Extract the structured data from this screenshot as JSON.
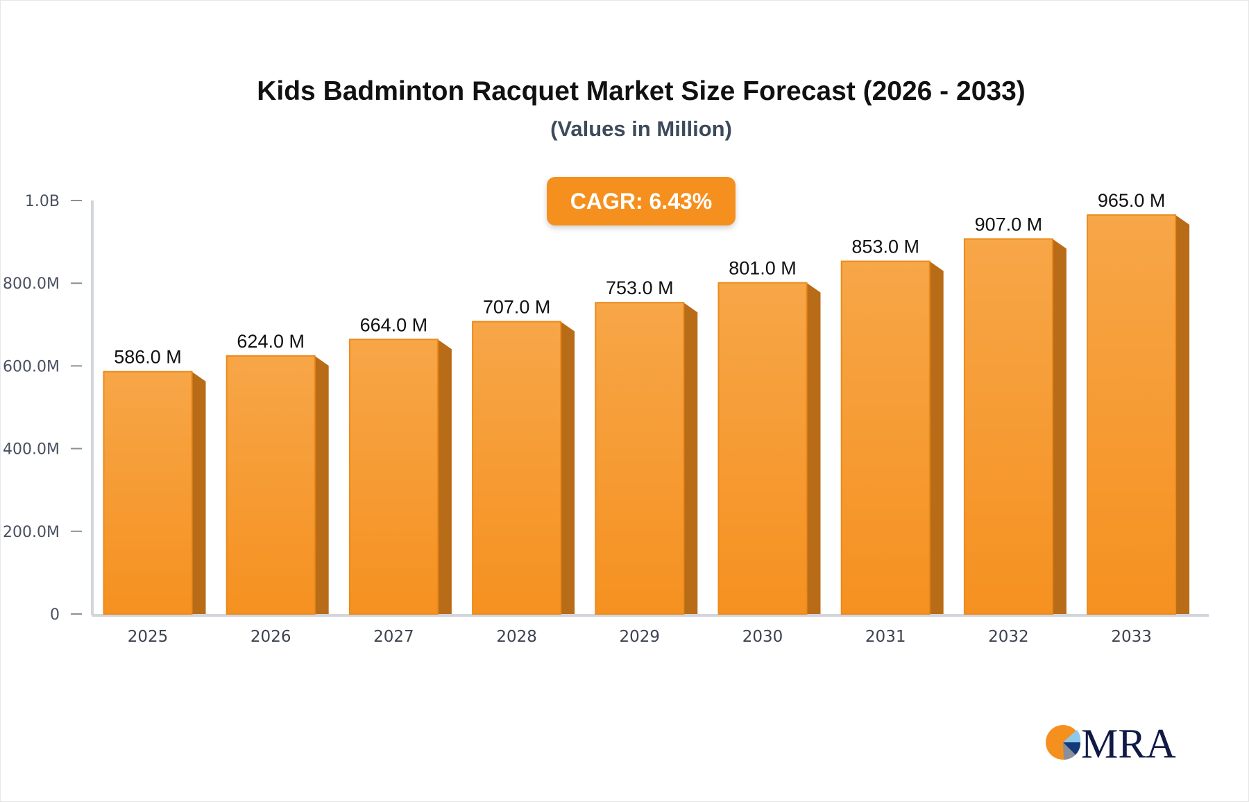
{
  "chart_data": {
    "type": "bar",
    "title": "Kids Badminton Racquet Market Size Forecast (2026 - 2033)",
    "subtitle": "(Values in Million)",
    "annotation": "CAGR: 6.43%",
    "categories": [
      "2025",
      "2026",
      "2027",
      "2028",
      "2029",
      "2030",
      "2031",
      "2032",
      "2033"
    ],
    "values": [
      586.0,
      624.0,
      664.0,
      707.0,
      753.0,
      801.0,
      853.0,
      907.0,
      965.0
    ],
    "data_labels": [
      "586.0 M",
      "624.0 M",
      "664.0 M",
      "707.0 M",
      "753.0 M",
      "801.0 M",
      "853.0 M",
      "907.0 M",
      "965.0 M"
    ],
    "unit": "Million",
    "ylim": [
      0,
      1000
    ],
    "y_ticks": [
      0,
      200,
      400,
      600,
      800,
      1000
    ],
    "y_tick_labels": [
      "0",
      "200.0M",
      "400.0M",
      "600.0M",
      "800.0M",
      "1.0B"
    ],
    "grid": false,
    "colors": {
      "bar_front": "#f7a445",
      "bar_front_bottom": "#f5911e",
      "bar_side": "#b86c17",
      "annotation_bg": "#f5901f"
    }
  },
  "logo": {
    "text": "MRA"
  }
}
